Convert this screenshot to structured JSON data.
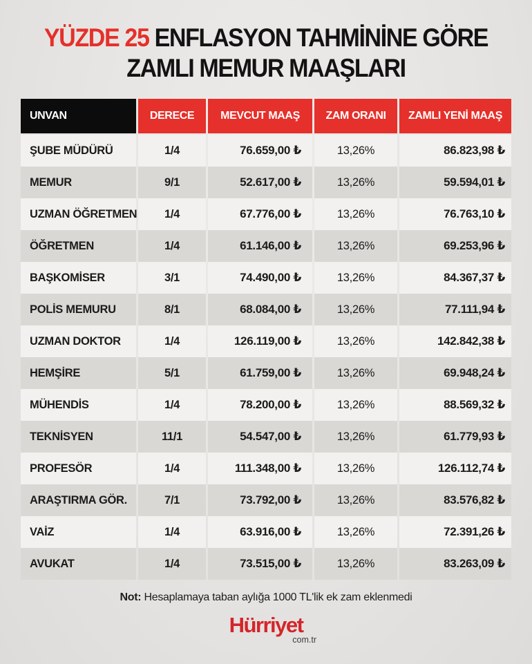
{
  "title": {
    "highlight": "YÜZDE 25",
    "line1_rest": " ENFLASYON TAHMİNİNE GÖRE",
    "line2": "ZAMLI MEMUR MAAŞLARI"
  },
  "chart_data": {
    "type": "table",
    "title": "YÜZDE 25 ENFLASYON TAHMİNİNE GÖRE ZAMLI MEMUR MAAŞLARI",
    "columns": [
      "UNVAN",
      "DERECE",
      "MEVCUT MAAŞ",
      "ZAM ORANI",
      "ZAMLI YENİ MAAŞ"
    ],
    "rows": [
      [
        "ŞUBE MÜDÜRÜ",
        "1/4",
        "76.659,00 ₺",
        "13,26%",
        "86.823,98 ₺"
      ],
      [
        "MEMUR",
        "9/1",
        "52.617,00 ₺",
        "13,26%",
        "59.594,01 ₺"
      ],
      [
        "UZMAN ÖĞRETMEN",
        "1/4",
        "67.776,00 ₺",
        "13,26%",
        "76.763,10 ₺"
      ],
      [
        "ÖĞRETMEN",
        "1/4",
        "61.146,00 ₺",
        "13,26%",
        "69.253,96 ₺"
      ],
      [
        "BAŞKOMİSER",
        "3/1",
        "74.490,00 ₺",
        "13,26%",
        "84.367,37 ₺"
      ],
      [
        "POLİS MEMURU",
        "8/1",
        "68.084,00 ₺",
        "13,26%",
        "77.111,94 ₺"
      ],
      [
        "UZMAN DOKTOR",
        "1/4",
        "126.119,00 ₺",
        "13,26%",
        "142.842,38 ₺"
      ],
      [
        "HEMŞİRE",
        "5/1",
        "61.759,00 ₺",
        "13,26%",
        "69.948,24 ₺"
      ],
      [
        "MÜHENDİS",
        "1/4",
        "78.200,00 ₺",
        "13,26%",
        "88.569,32 ₺"
      ],
      [
        "TEKNİSYEN",
        "11/1",
        "54.547,00 ₺",
        "13,26%",
        "61.779,93 ₺"
      ],
      [
        "PROFESÖR",
        "1/4",
        "111.348,00 ₺",
        "13,26%",
        "126.112,74 ₺"
      ],
      [
        "ARAŞTIRMA GÖR.",
        "7/1",
        "73.792,00 ₺",
        "13,26%",
        "83.576,82 ₺"
      ],
      [
        "VAİZ",
        "1/4",
        "63.916,00 ₺",
        "13,26%",
        "72.391,26 ₺"
      ],
      [
        "AVUKAT",
        "1/4",
        "73.515,00 ₺",
        "13,26%",
        "83.263,09 ₺"
      ]
    ],
    "note": "Not: Hesaplamaya taban aylığa 1000 TL'lik ek zam eklenmedi",
    "legend_position": "none",
    "grid": false
  },
  "note": {
    "label": "Not:",
    "text": " Hesaplamaya taban aylığa 1000 TL'lik ek zam eklenmedi"
  },
  "footer": {
    "brand": "Hürriyet",
    "domain": "com.tr"
  },
  "colors": {
    "accent_red": "#e5302b",
    "header_black": "#0c0c0c",
    "row_light": "#f2f1ef",
    "row_dark": "#dad8d5",
    "logo_red": "#d4252a",
    "background": "#e6e4e2"
  }
}
